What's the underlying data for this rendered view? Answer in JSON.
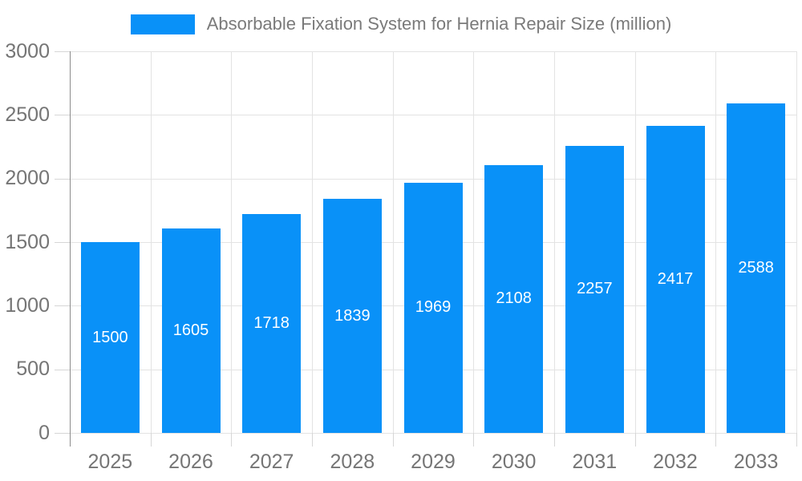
{
  "legend": {
    "label": "Absorbable Fixation System for Hernia Repair Size (million)"
  },
  "chart_data": {
    "type": "bar",
    "title": "Absorbable Fixation System for Hernia Repair Size (million)",
    "categories": [
      "2025",
      "2026",
      "2027",
      "2028",
      "2029",
      "2030",
      "2031",
      "2032",
      "2033"
    ],
    "values": [
      1500,
      1605,
      1718,
      1839,
      1969,
      2108,
      2257,
      2417,
      2588
    ],
    "xlabel": "",
    "ylabel": "",
    "ylim": [
      0,
      3000
    ],
    "yticks": [
      0,
      500,
      1000,
      1500,
      2000,
      2500,
      3000
    ],
    "grid": true,
    "legend_position": "top-center",
    "bar_label_position": "inside-center",
    "bar_label_color": "#ffffff"
  },
  "colors": {
    "bar": "#0991f8",
    "grid_line": "#e3e3e3",
    "axis_line": "#8c8c8c",
    "tick_mark": "#d6d6d6",
    "axis_text": "#757575",
    "legend_text": "#7a7a7a",
    "bar_label": "#ffffff",
    "background": "#ffffff"
  }
}
